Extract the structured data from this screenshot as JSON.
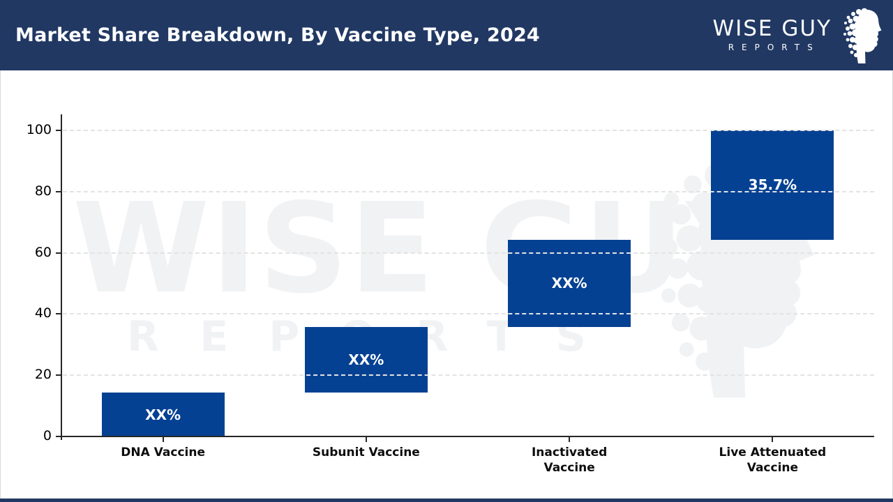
{
  "header": {
    "title": "Market Share Breakdown, By Vaccine Type, 2024",
    "logo": {
      "line1": "WISE GUY",
      "line2": "REPORTS"
    }
  },
  "watermark": {
    "line1": "WISE GUY",
    "line2": "REPORTS"
  },
  "chart_data": {
    "type": "bar",
    "subtype": "floating-waterfall",
    "title": "Market Share Breakdown, By Vaccine Type, 2024",
    "categories": [
      "DNA Vaccine",
      "Subunit Vaccine",
      "Inactivated Vaccine",
      "Live Attenuated Vaccine"
    ],
    "category_lines": [
      [
        "DNA Vaccine"
      ],
      [
        "Subunit Vaccine"
      ],
      [
        "Inactivated",
        "Vaccine"
      ],
      [
        "Live Attenuated",
        "Vaccine"
      ]
    ],
    "segments": [
      {
        "category": "DNA Vaccine",
        "from": 0,
        "to": 14.3,
        "label": "XX%"
      },
      {
        "category": "Subunit Vaccine",
        "from": 14.3,
        "to": 35.7,
        "label": "XX%"
      },
      {
        "category": "Inactivated Vaccine",
        "from": 35.7,
        "to": 64.3,
        "label": "XX%"
      },
      {
        "category": "Live Attenuated Vaccine",
        "from": 64.3,
        "to": 100,
        "label": "35.7%"
      }
    ],
    "xlabel": "",
    "ylabel": "",
    "ylim": [
      0,
      105
    ],
    "yticks": [
      0,
      20,
      40,
      60,
      80,
      100
    ],
    "grid": {
      "horizontal": true,
      "style": "dashed"
    },
    "legend": null,
    "colors": {
      "bar": "#054193",
      "bar_label": "#ffffff",
      "axis": "#262626",
      "grid": "#e3e3e3",
      "header_bg": "#213863",
      "watermark": "#f1f2f4"
    }
  }
}
